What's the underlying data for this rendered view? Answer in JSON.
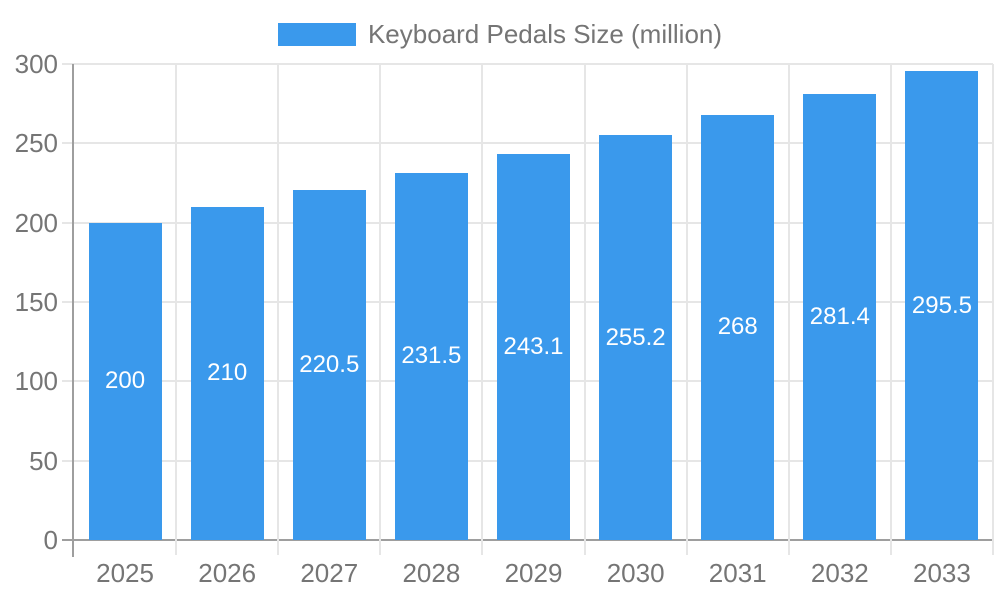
{
  "chart_data": {
    "type": "bar",
    "title": "Keyboard Pedals Size (million)",
    "legend": {
      "position": "top",
      "entries": [
        "Keyboard Pedals Size (million)"
      ]
    },
    "categories": [
      "2025",
      "2026",
      "2027",
      "2028",
      "2029",
      "2030",
      "2031",
      "2032",
      "2033"
    ],
    "values": [
      200,
      210,
      220.5,
      231.5,
      243.1,
      255.2,
      268,
      281.4,
      295.5
    ],
    "xlabel": "",
    "ylabel": "",
    "ylim": [
      0,
      300
    ],
    "yticks": [
      0,
      50,
      100,
      150,
      200,
      250,
      300
    ],
    "grid": true,
    "colors": {
      "bar": "#3a99ec",
      "bar_label_text": "#ffffff",
      "axis_text": "#757575",
      "gridline": "#e6e6e6",
      "axis_line": "#9e9e9e"
    }
  }
}
